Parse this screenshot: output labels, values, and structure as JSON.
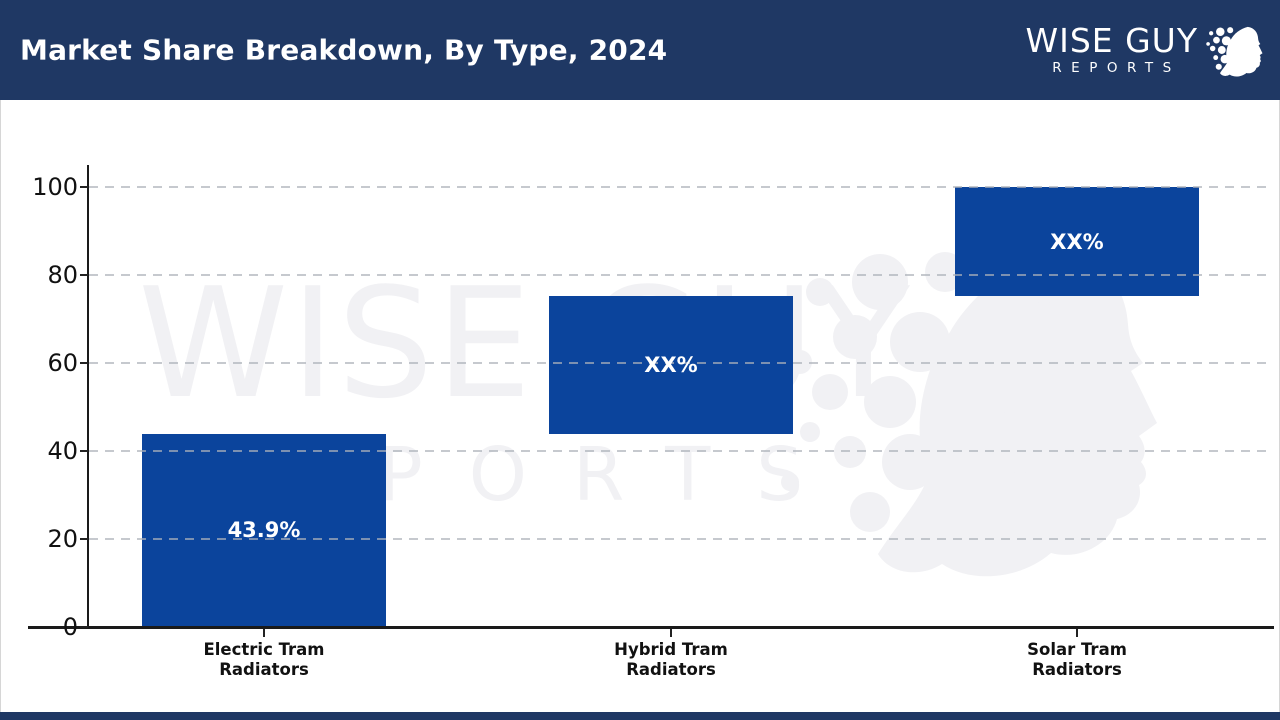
{
  "header": {
    "title": "Market Share Breakdown, By Type, 2024",
    "logo": {
      "line1": "WISE GUY",
      "line2": "REPORTS",
      "icon": "dotted-head-profile"
    }
  },
  "watermark": {
    "line1": "WISE GUY",
    "line2": "REPORTS",
    "icon": "dotted-head-profile"
  },
  "chart_data": {
    "type": "bar",
    "variant": "floating-segment bars (waterfall-style market share)",
    "title": "Market Share Breakdown, By Type, 2024",
    "categories": [
      "Electric Tram Radiators",
      "Hybrid Tram Radiators",
      "Solar Tram Radiators"
    ],
    "category_lines": [
      [
        "Electric Tram",
        "Radiators"
      ],
      [
        "Hybrid Tram",
        "Radiators"
      ],
      [
        "Solar Tram",
        "Radiators"
      ]
    ],
    "segments": [
      {
        "category": "Electric Tram Radiators",
        "start": 0,
        "end": 43.9,
        "label": "43.9%"
      },
      {
        "category": "Hybrid Tram Radiators",
        "start": 43.9,
        "end": 75.2,
        "label": "XX%"
      },
      {
        "category": "Solar Tram Radiators",
        "start": 75.2,
        "end": 100,
        "label": "XX%"
      }
    ],
    "y_ticks": [
      0,
      20,
      40,
      60,
      80,
      100
    ],
    "ylim": [
      0,
      105
    ],
    "xlabel": "",
    "ylabel": "",
    "grid": "horizontal dashed",
    "legend": "none",
    "bar_color": "#0B449C"
  },
  "colors": {
    "header_bg": "#1F3864",
    "footer_bg": "#1F3864",
    "bar": "#0B449C",
    "bar_label_text": "#FFFFFF",
    "axis": "#1A1A1A",
    "gridline": "#D9D9D9",
    "watermark": "#F1F1F4",
    "page_border": "#D6D6D6",
    "title_text": "#FFFFFF"
  }
}
